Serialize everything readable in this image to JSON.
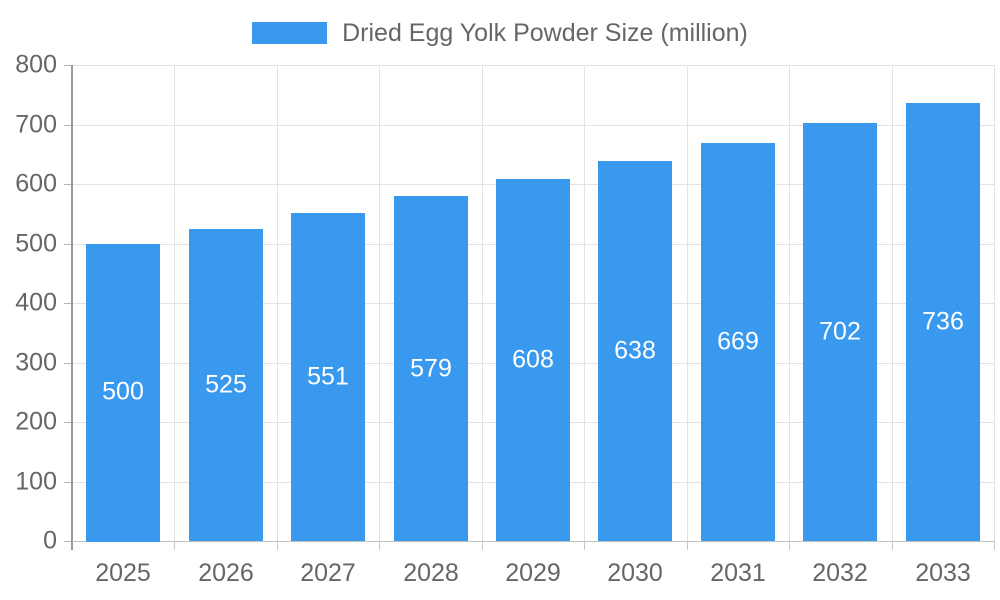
{
  "legend": {
    "label": "Dried Egg Yolk Powder Size (million)"
  },
  "chart_data": {
    "type": "bar",
    "title": "Dried Egg Yolk Powder Size (million)",
    "categories": [
      "2025",
      "2026",
      "2027",
      "2028",
      "2029",
      "2030",
      "2031",
      "2032",
      "2033"
    ],
    "values": [
      500,
      525,
      551,
      579,
      608,
      638,
      669,
      702,
      736
    ],
    "xlabel": "",
    "ylabel": "",
    "ylim": [
      0,
      800
    ],
    "ytick_step": 100,
    "yticks": [
      "0",
      "100",
      "200",
      "300",
      "400",
      "500",
      "600",
      "700",
      "800"
    ],
    "grid": true,
    "legend_position": "top",
    "value_labels": "inside-center",
    "colors": {
      "bar": "#3899EF",
      "value_label": "#ffffff",
      "axis_text": "#666666",
      "gridline": "#e3e3e3",
      "y_axis_line": "#9a9a9a",
      "x_axis_line": "#c0c0c0"
    }
  }
}
